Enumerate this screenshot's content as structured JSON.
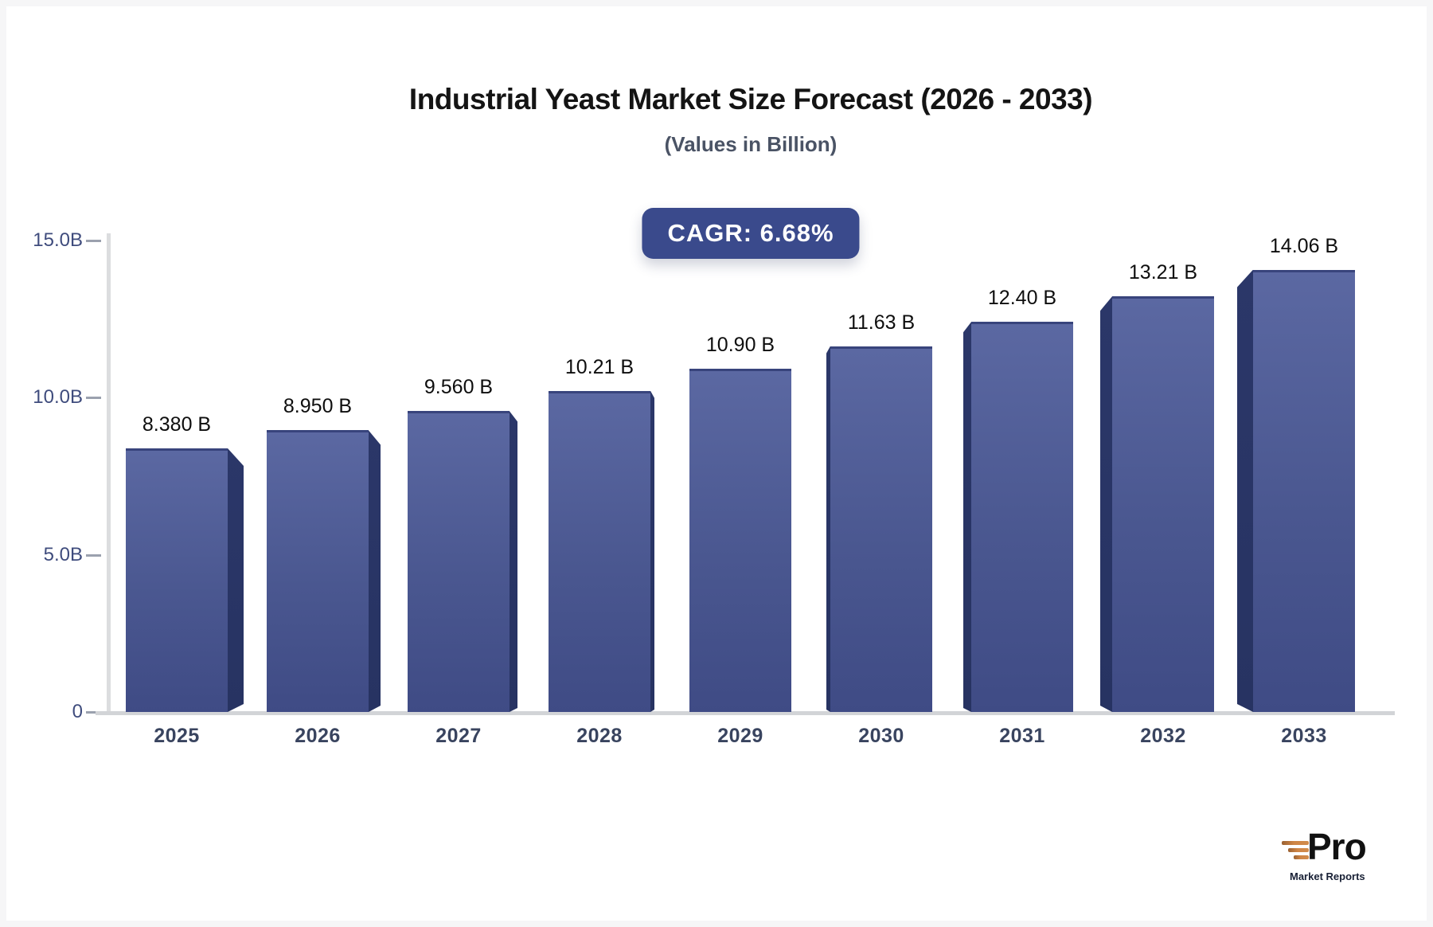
{
  "header": {
    "title": "Industrial Yeast Market Size Forecast (2026 - 2033)",
    "subtitle": "(Values in Billion)"
  },
  "badge": {
    "label": "CAGR: 6.68%"
  },
  "chart_data": {
    "type": "bar",
    "title": "Industrial Yeast Market Size Forecast (2026 - 2033)",
    "subtitle": "(Values in Billion)",
    "annotation": "CAGR: 6.68%",
    "categories": [
      "2025",
      "2026",
      "2027",
      "2028",
      "2029",
      "2030",
      "2031",
      "2032",
      "2033"
    ],
    "values": [
      8.38,
      8.95,
      9.56,
      10.21,
      10.9,
      11.63,
      12.4,
      13.21,
      14.06
    ],
    "bar_labels": [
      "8.380 B",
      "8.950 B",
      "9.560 B",
      "10.21 B",
      "10.90 B",
      "11.63 B",
      "12.40 B",
      "13.21 B",
      "14.06 B"
    ],
    "xlabel": "",
    "ylabel": "",
    "ylim": [
      0,
      15
    ],
    "yticks": [
      {
        "value": 0,
        "label": "0"
      },
      {
        "value": 5,
        "label": "5.0B"
      },
      {
        "value": 10,
        "label": "10.0B"
      },
      {
        "value": 15,
        "label": "15.0B"
      }
    ],
    "grid": false,
    "legend": null,
    "colors": {
      "bar_front_top": "#5b68a2",
      "bar_front_bottom": "#3f4b85",
      "bar_side": "#2a366a",
      "axis_line": "#d6d7d9",
      "tick_label": "#3f4c7d",
      "category_label": "#39445f",
      "value_label": "#0e0e0e",
      "badge_bg": "#3a4a8c",
      "badge_text": "#ffffff"
    }
  },
  "logo": {
    "name": "Pro",
    "tagline": "Market Reports",
    "accent_color": "#cf8545"
  }
}
